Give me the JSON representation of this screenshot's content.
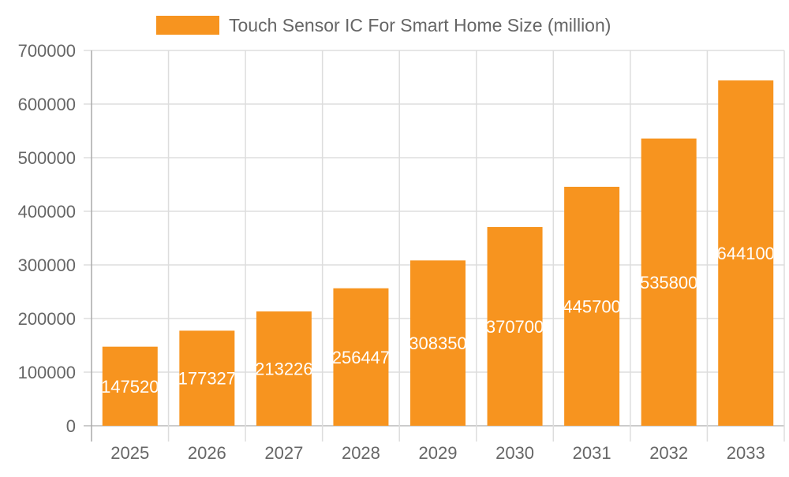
{
  "chart_data": {
    "type": "bar",
    "title": "",
    "xlabel": "",
    "ylabel": "",
    "categories": [
      "2025",
      "2026",
      "2027",
      "2028",
      "2029",
      "2030",
      "2031",
      "2032",
      "2033"
    ],
    "series": [
      {
        "name": "Touch Sensor IC For Smart Home Size (million)",
        "values": [
          147520,
          177327,
          213226,
          256447,
          308350,
          370700,
          445700,
          535800,
          644100
        ],
        "color": "#f7941f"
      }
    ],
    "ylim": [
      0,
      700000
    ],
    "yticks": [
      "0",
      "100000",
      "200000",
      "300000",
      "400000",
      "500000",
      "600000",
      "700000"
    ],
    "grid": true,
    "legend": "top",
    "data_labels": true
  }
}
